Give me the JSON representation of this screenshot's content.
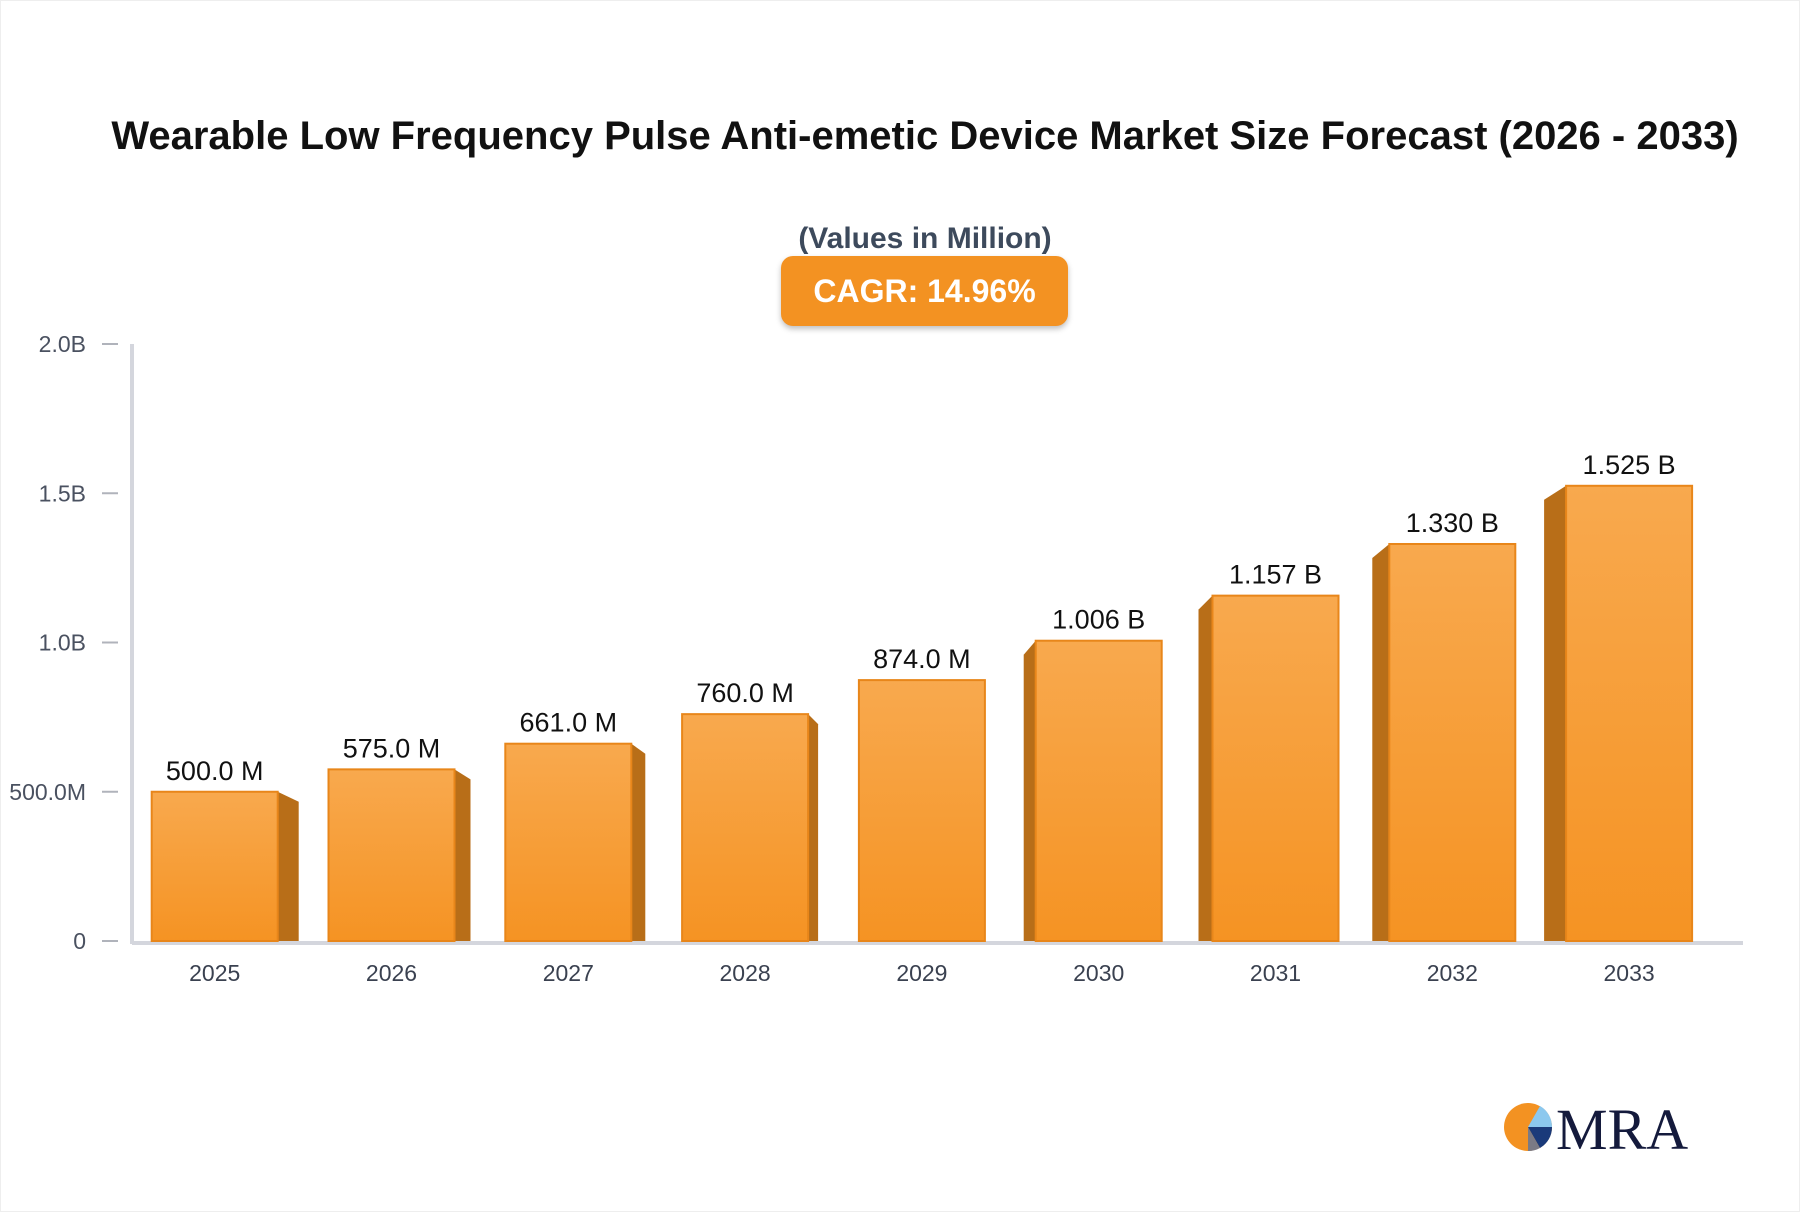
{
  "chart_data": {
    "type": "bar",
    "title": "Wearable Low Frequency Pulse Anti-emetic Device Market Size Forecast (2026 - 2033)",
    "subtitle": "(Values in Million)",
    "badge": "CAGR: 14.96%",
    "categories": [
      "2025",
      "2026",
      "2027",
      "2028",
      "2029",
      "2030",
      "2031",
      "2032",
      "2033"
    ],
    "values": [
      500.0,
      575.0,
      661.0,
      760.0,
      874.0,
      1006,
      1157,
      1330,
      1525
    ],
    "data_labels": [
      "500.0 M",
      "575.0 M",
      "661.0 M",
      "760.0 M",
      "874.0 M",
      "1.006 B",
      "1.157 B",
      "1.330 B",
      "1.525 B"
    ],
    "yticks": [
      0,
      500,
      1000,
      1500,
      2000
    ],
    "ytick_labels": [
      "0",
      "500.0M",
      "1.0B",
      "1.5B",
      "2.0B"
    ],
    "ylim": [
      0,
      2000
    ],
    "xlabel": "",
    "ylabel": "",
    "grid": false,
    "colors": {
      "bar": "#f39222",
      "bar_top": "#f8a94e",
      "bar_side": "#b86e18",
      "axis": "#d4d6dd",
      "badge": "#f39222"
    }
  },
  "logo": {
    "text": "MRA"
  }
}
